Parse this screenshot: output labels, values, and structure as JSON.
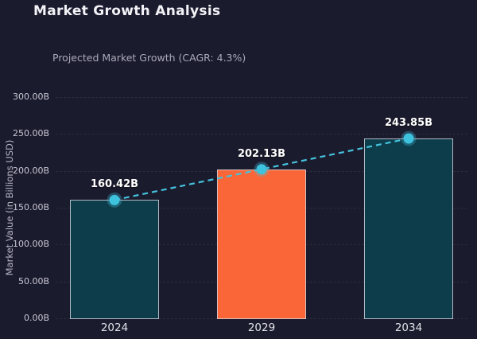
{
  "chart_data": {
    "type": "bar",
    "title": "Market Growth Analysis",
    "subtitle": "Projected Market Growth (CAGR: 4.3%)",
    "xlabel": "",
    "ylabel": "Market Value (in Billions USD)",
    "categories": [
      "2024",
      "2029",
      "2034"
    ],
    "values": [
      160.42,
      202.13,
      243.85
    ],
    "value_labels": [
      "160.42B",
      "202.13B",
      "243.85B"
    ],
    "y_ticks": [
      {
        "value": 0,
        "label": "0.00B"
      },
      {
        "value": 50,
        "label": "50.00B"
      },
      {
        "value": 100,
        "label": "100.00B"
      },
      {
        "value": 150,
        "label": "150.00B"
      },
      {
        "value": 200,
        "label": "200.00B"
      },
      {
        "value": 250,
        "label": "250.00B"
      },
      {
        "value": 300,
        "label": "300.00B"
      }
    ],
    "ylim": [
      0,
      300
    ],
    "grid": true,
    "legend": false,
    "trendline_over_bars": true,
    "bar_colors": [
      "#0d3c4b",
      "#fa6637",
      "#0d3c4b"
    ],
    "colors": {
      "background": "#1b1b2e",
      "bar_teal": "#0d3c4b",
      "bar_highlight_orange": "#fa6637",
      "bar_border": "#cfcfda",
      "trend_line": "#45c2dd",
      "marker_fill": "#3ec3de",
      "title_text": "#f2f2f7",
      "subtitle_text": "#a9a9b7",
      "tick_text": "#c6c6d2",
      "axis_title_text": "#b4b4c2",
      "category_text": "#e0e0e8",
      "value_label_text": "#ffffff"
    }
  }
}
